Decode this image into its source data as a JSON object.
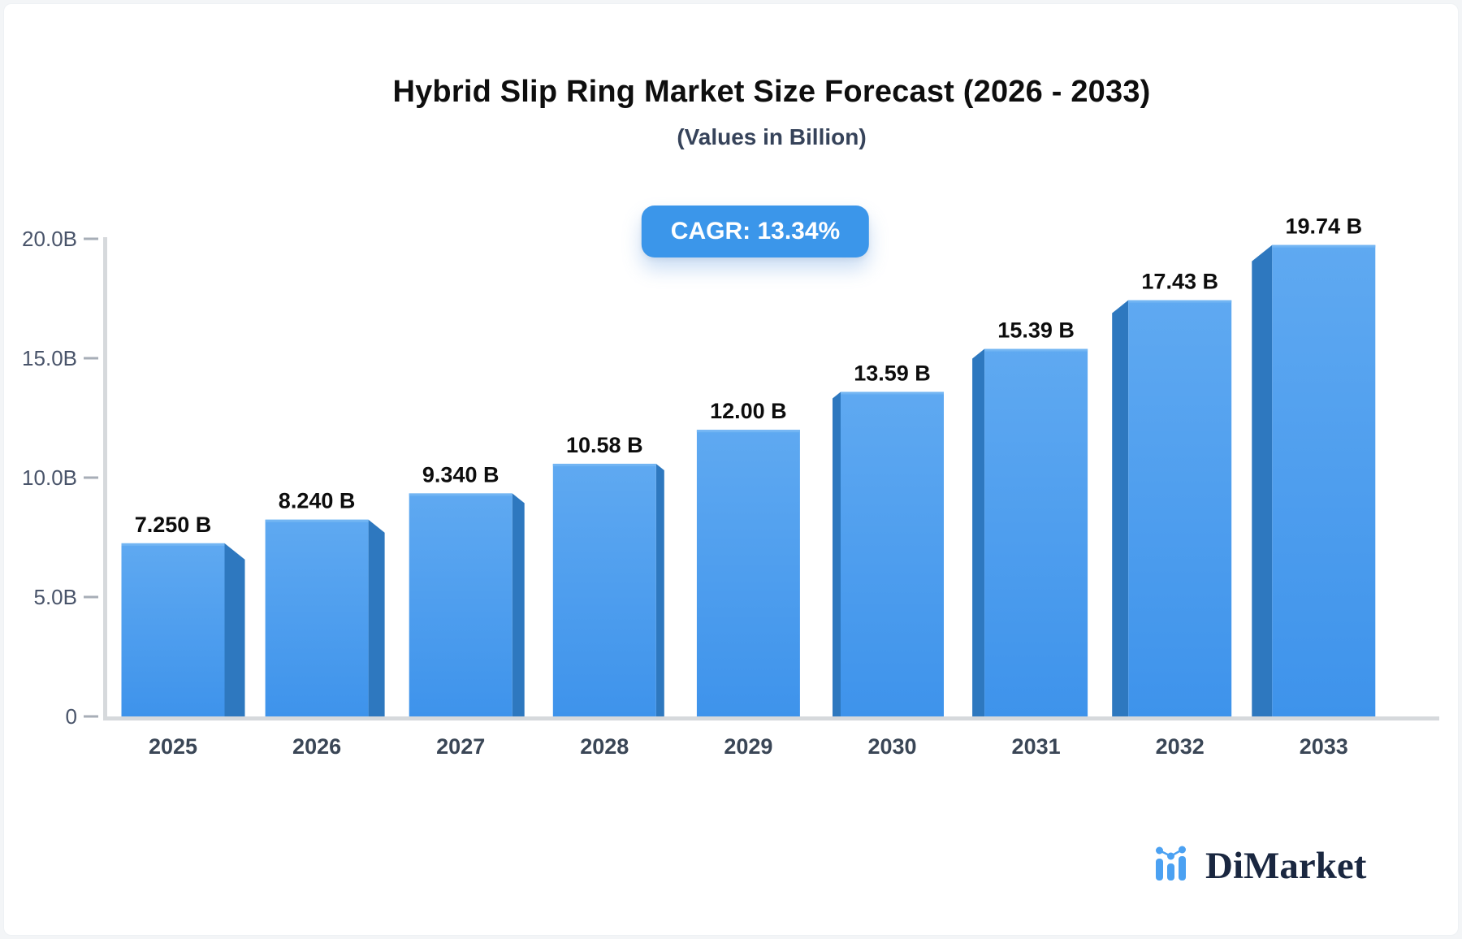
{
  "chart_data": {
    "type": "bar",
    "title": "Hybrid Slip Ring Market Size Forecast (2026 - 2033)",
    "subtitle": "(Values in Billion)",
    "badge_label": "CAGR: 13.34%",
    "categories": [
      "2025",
      "2026",
      "2027",
      "2028",
      "2029",
      "2030",
      "2031",
      "2032",
      "2033"
    ],
    "values": [
      7.25,
      8.24,
      9.34,
      10.58,
      12.0,
      13.59,
      15.39,
      17.43,
      19.74
    ],
    "value_labels": [
      "7.250 B",
      "8.240 B",
      "9.340 B",
      "10.58 B",
      "12.00 B",
      "13.59 B",
      "15.39 B",
      "17.43 B",
      "19.74 B"
    ],
    "xlabel": "",
    "ylabel": "",
    "ylim": [
      0,
      20
    ],
    "yticks": [
      {
        "value": 0,
        "label": "0"
      },
      {
        "value": 5,
        "label": "5.0B"
      },
      {
        "value": 10,
        "label": "10.0B"
      },
      {
        "value": 15,
        "label": "15.0B"
      },
      {
        "value": 20,
        "label": "20.0B"
      }
    ],
    "grid": false,
    "legend": "none",
    "style_3d": "perspective side bevels toward center bar"
  },
  "colors": {
    "bar_face_top": "#5FA9F1",
    "bar_face_bottom": "#3E93EB",
    "bar_top_edge": "#72B5F3",
    "bar_side": "#2e78bf",
    "axis_line": "#d6d9dc",
    "tick_dash": "#a7aeb7",
    "y_label": "#49546a",
    "x_label": "#3a4656",
    "value_label": "#0d0d0d",
    "badge_bg": "#3b96ea",
    "badge_text": "#ffffff",
    "title": "#0e0e0e",
    "subtitle": "#36435a",
    "logo_text": "#1a2740",
    "logo_icon": "#4ba1f2"
  },
  "logo": {
    "icon": "mini-bar-line-chart-icon",
    "text": "DiMarket"
  }
}
